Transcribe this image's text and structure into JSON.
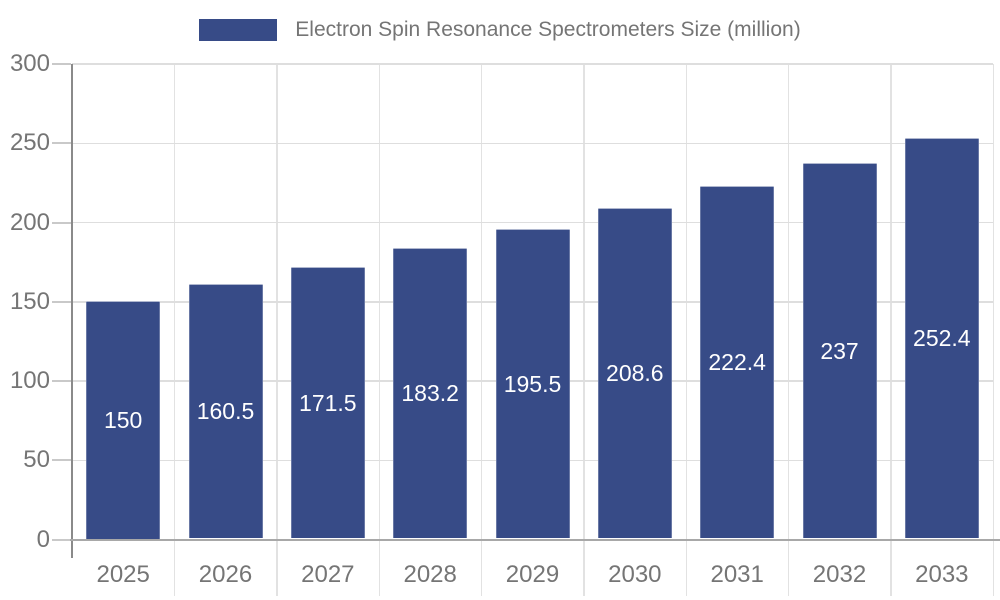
{
  "chart_data": {
    "type": "bar",
    "title": "Electron Spin Resonance Spectrometers Size (million)",
    "categories": [
      "2025",
      "2026",
      "2027",
      "2028",
      "2029",
      "2030",
      "2031",
      "2032",
      "2033"
    ],
    "series": [
      {
        "name": "Electron Spin Resonance Spectrometers Size (million)",
        "values": [
          150,
          160.5,
          171.5,
          183.2,
          195.5,
          208.6,
          222.4,
          237,
          252.4
        ]
      }
    ],
    "value_labels": [
      "150",
      "160.5",
      "171.5",
      "183.2",
      "195.5",
      "208.6",
      "222.4",
      "237",
      "252.4"
    ],
    "xlabel": "",
    "ylabel": "",
    "ylim": [
      0,
      300
    ],
    "yticks": [
      0,
      50,
      100,
      150,
      200,
      250,
      300
    ],
    "grid": true,
    "legend_position": "top",
    "value_labels_inside_bars": true,
    "colors": {
      "bar": "#374B87",
      "value_label": "#FFFFFF",
      "axis_text": "#757575",
      "legend_text": "#757575",
      "gridline": "#DEDEDE",
      "vertical_gridline": "#E2E2E2",
      "y_axis_line": "#8A8A8A",
      "x_axis_line": "#A8A8A8",
      "tick": "#C9C9C9",
      "background": "#FFFFFF"
    }
  }
}
